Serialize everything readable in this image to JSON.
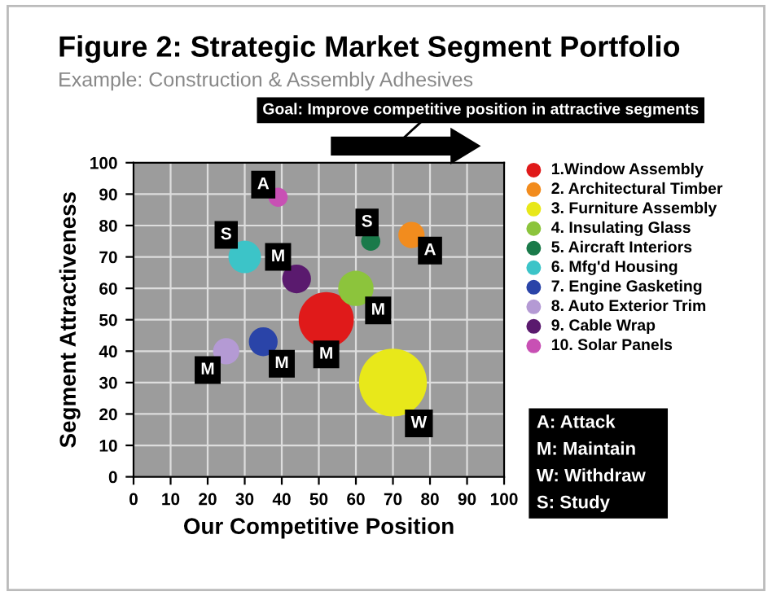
{
  "chart_data": {
    "type": "bubble",
    "title": "Figure 2: Strategic Market Segment Portfolio",
    "subtitle": "Example: Construction & Assembly Adhesives",
    "xlabel": "Our Competitive Position",
    "ylabel": "Segment Attractiveness",
    "xlim": [
      0,
      100
    ],
    "ylim": [
      0,
      100
    ],
    "xticks": [
      0,
      10,
      20,
      30,
      40,
      50,
      60,
      70,
      80,
      90,
      100
    ],
    "yticks": [
      0,
      10,
      20,
      30,
      40,
      50,
      60,
      70,
      80,
      90,
      100
    ],
    "grid": true,
    "legend": "right",
    "series": [
      {
        "name": "1.Window Assembly",
        "color": "#e01a1a",
        "x": [
          52
        ],
        "values": [
          50
        ],
        "sizes": [
          0.66
        ]
      },
      {
        "name": "2. Architectural Timber",
        "color": "#f28c1e",
        "x": [
          75
        ],
        "values": [
          77
        ],
        "sizes": [
          0.15
        ]
      },
      {
        "name": "3. Furniture Assembly",
        "color": "#e8e81a",
        "x": [
          70
        ],
        "values": [
          30
        ],
        "sizes": [
          1
        ]
      },
      {
        "name": "4. Insulating Glass",
        "color": "#8cc43c",
        "x": [
          60
        ],
        "values": [
          60
        ],
        "sizes": [
          0.27
        ]
      },
      {
        "name": "5. Aircraft Interiors",
        "color": "#1a7a4a",
        "x": [
          64
        ],
        "values": [
          75
        ],
        "sizes": [
          0.08
        ]
      },
      {
        "name": "6. Mfg'd Housing",
        "color": "#3cc4c8",
        "x": [
          30
        ],
        "values": [
          70
        ],
        "sizes": [
          0.23
        ]
      },
      {
        "name": "7. Engine Gasketing",
        "color": "#2a44a8",
        "x": [
          35
        ],
        "values": [
          43
        ],
        "sizes": [
          0.18
        ]
      },
      {
        "name": "8. Auto Exterior Trim",
        "color": "#b49ad4",
        "x": [
          25
        ],
        "values": [
          40
        ],
        "sizes": [
          0.15
        ]
      },
      {
        "name": "9. Cable Wrap",
        "color": "#5a1a6e",
        "x": [
          44
        ],
        "values": [
          63
        ],
        "sizes": [
          0.18
        ]
      },
      {
        "name": "10. Solar Panels",
        "color": "#c850b4",
        "x": [
          39
        ],
        "values": [
          89
        ],
        "sizes": [
          0.08
        ]
      }
    ],
    "annotations": [
      {
        "text": "A",
        "x": 35,
        "y": 93
      },
      {
        "text": "S",
        "x": 63,
        "y": 81
      },
      {
        "text": "A",
        "x": 80,
        "y": 72
      },
      {
        "text": "S",
        "x": 25,
        "y": 77
      },
      {
        "text": "M",
        "x": 39,
        "y": 70
      },
      {
        "text": "M",
        "x": 66,
        "y": 53
      },
      {
        "text": "M",
        "x": 52,
        "y": 39
      },
      {
        "text": "M",
        "x": 40,
        "y": 36
      },
      {
        "text": "M",
        "x": 20,
        "y": 34
      },
      {
        "text": "W",
        "x": 77,
        "y": 17
      },
      "Goal: Improve competitive position in attractive segments",
      "A: Attack",
      "M: Maintain",
      "W: Withdraw",
      "S: Study"
    ]
  }
}
